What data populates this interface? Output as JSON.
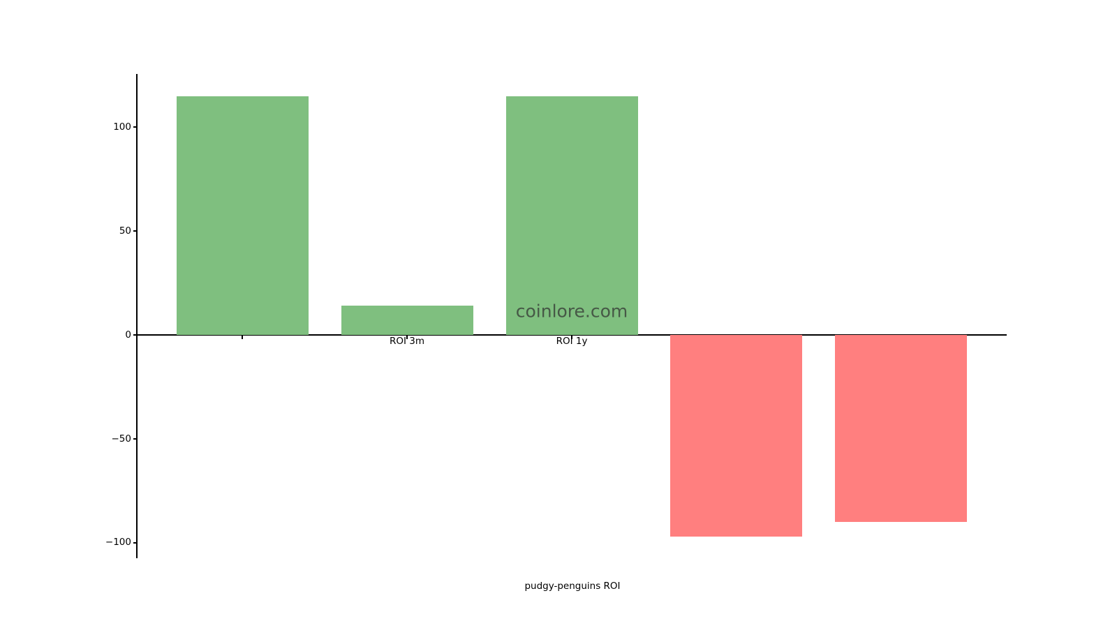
{
  "page": {
    "background_color": "#ffffff"
  },
  "chart_data": {
    "type": "bar",
    "title": "",
    "xlabel": "pudgy-penguins ROI",
    "ylabel": "",
    "watermark": "coinlore.com",
    "categories": [
      "",
      "ROI 3m",
      "ROI 1y",
      "",
      ""
    ],
    "values": [
      115,
      14,
      115,
      -97,
      -90
    ],
    "bar_colors": [
      "#7fbf7f",
      "#7fbf7f",
      "#7fbf7f",
      "#ff7f7f",
      "#ff7f7f"
    ],
    "positive_color": "#7fbf7f",
    "negative_color": "#ff7f7f",
    "axis_color": "#000000",
    "yticks": [
      100,
      50,
      0,
      -50,
      -100
    ],
    "ytick_labels": [
      "100",
      "50",
      "0",
      "−50",
      "−100"
    ],
    "xticks_shown": [
      0,
      1,
      2
    ],
    "ylim": [
      -107.6,
      125.6
    ],
    "grid": false,
    "legend": null
  }
}
